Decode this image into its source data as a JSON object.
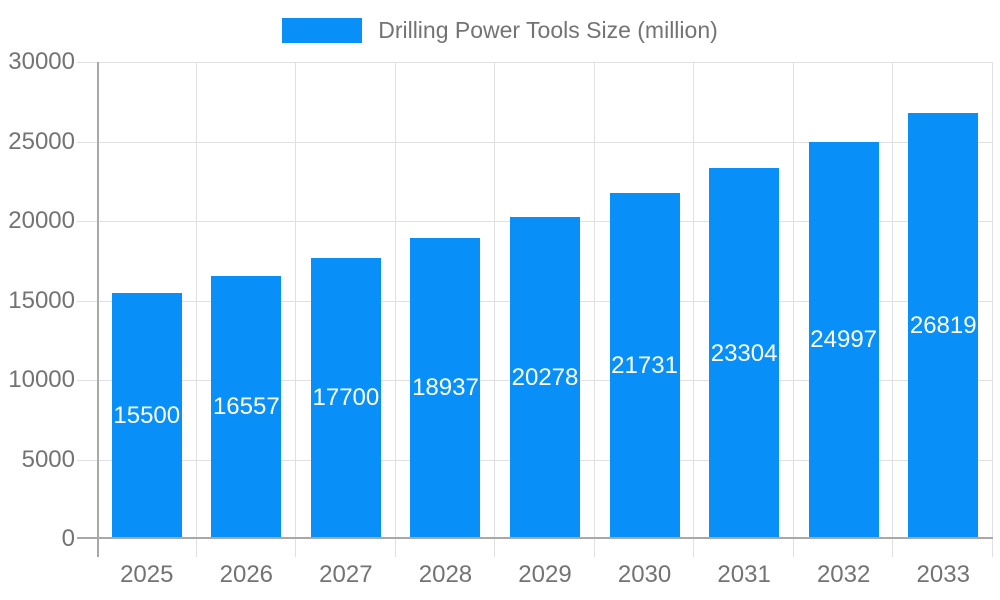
{
  "legend": {
    "label": "Drilling Power Tools Size (million)"
  },
  "colors": {
    "bar": "#0990F8",
    "grid": "#e0e0e0",
    "axis_line": "#a8a8a8",
    "axis_text": "#737373",
    "legend_text": "#737373",
    "value_label": "#ffffff",
    "background": "#ffffff"
  },
  "chart_data": {
    "type": "bar",
    "title": "",
    "xlabel": "",
    "ylabel": "",
    "categories": [
      "2025",
      "2026",
      "2027",
      "2028",
      "2029",
      "2030",
      "2031",
      "2032",
      "2033"
    ],
    "series": [
      {
        "name": "Drilling Power Tools Size (million)",
        "values": [
          15500,
          16557,
          17700,
          18937,
          20278,
          21731,
          23304,
          24997,
          26819
        ]
      }
    ],
    "data_labels": [
      15500,
      16557,
      17700,
      18937,
      20278,
      21731,
      23304,
      24997,
      26819
    ],
    "data_label_position": "inside-center",
    "ylim": [
      0,
      30000
    ],
    "ytick_interval": 5000,
    "ytick_labels": [
      "0",
      "5000",
      "10000",
      "15000",
      "20000",
      "25000",
      "30000"
    ],
    "grid": true,
    "legend_position": "top-center"
  }
}
